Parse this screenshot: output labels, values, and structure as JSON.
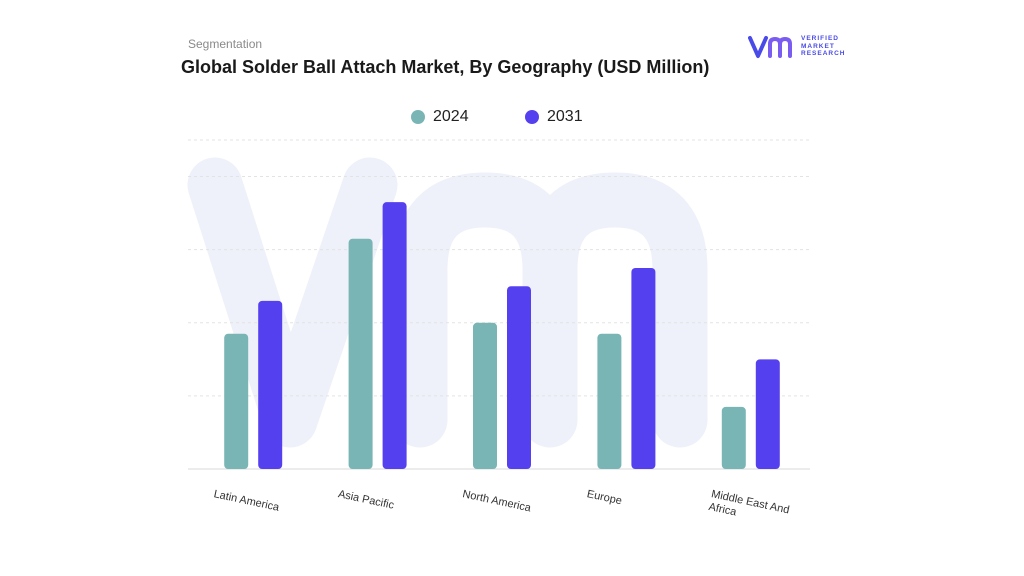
{
  "header": {
    "subtitle": "Segmentation",
    "title": "Global Solder Ball Attach Market, By Geography (USD Million)"
  },
  "logo": {
    "mark": "vmr",
    "line1": "VERIFIED",
    "line2": "MARKET",
    "line3": "RESEARCH"
  },
  "colors": {
    "series_2024": "#7ab5b5",
    "series_2031": "#5540f0",
    "grid": "#e3e3e3",
    "brand": "#4a4ae8"
  },
  "chart_data": {
    "type": "bar",
    "categories": [
      "Latin America",
      "Asia Pacific",
      "North America",
      "Europe",
      "Middle East And Africa"
    ],
    "series": [
      {
        "name": "2024",
        "values": [
          1.85,
          3.15,
          2.0,
          1.85,
          0.85
        ]
      },
      {
        "name": "2031",
        "values": [
          2.3,
          3.65,
          2.5,
          2.75,
          1.5
        ]
      }
    ],
    "ylim": [
      0,
      4.5
    ],
    "grid": true,
    "legend_position": "top-center"
  }
}
